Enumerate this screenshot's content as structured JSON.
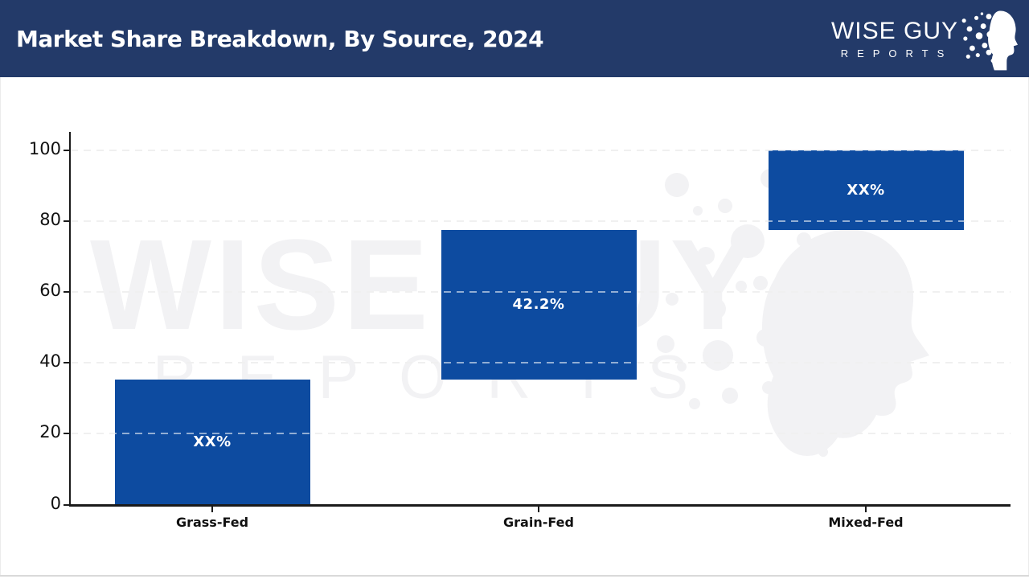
{
  "header": {
    "title": "Market Share Breakdown, By Source, 2024"
  },
  "logo": {
    "line1": "WISE GUY",
    "line2": "REPORTS"
  },
  "watermark": {
    "line1": "WISE GUY",
    "line2": "REPORTS"
  },
  "colors": {
    "header_bg": "#233a69",
    "title": "#ffffff",
    "bar": "#0d4ba0",
    "bar_label": "#ffffff",
    "axis": "#1a1a1a",
    "grid": "#dedede",
    "tick_label": "#111111",
    "watermark": "#f2f2f4",
    "bottom_rule": "#d9d9d9"
  },
  "chart_data": {
    "type": "bar",
    "subtype": "waterfall",
    "title": "Market Share Breakdown, By Source, 2024",
    "categories": [
      "Grass-Fed",
      "Grain-Fed",
      "Mixed-Fed"
    ],
    "segments": [
      {
        "category": "Grass-Fed",
        "start": 0,
        "end": 35.4,
        "label": "XX%",
        "value_masked": true
      },
      {
        "category": "Grain-Fed",
        "start": 35.4,
        "end": 77.6,
        "label": "42.2%",
        "value": 42.2
      },
      {
        "category": "Mixed-Fed",
        "start": 77.6,
        "end": 100,
        "label": "XX%",
        "value_masked": true
      }
    ],
    "unit": "%",
    "xlabel": "",
    "ylabel": "",
    "yticks": [
      0,
      20,
      40,
      60,
      80,
      100
    ],
    "ylim": [
      0,
      105
    ],
    "grid": "horizontal-dashed",
    "legend": "none"
  }
}
